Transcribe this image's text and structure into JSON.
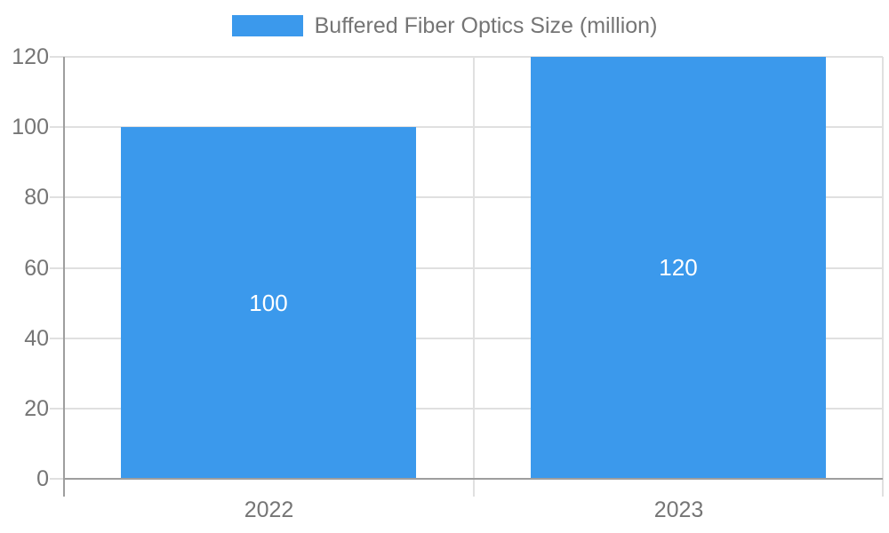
{
  "chart": {
    "colors": {
      "bar": "#3b99ec",
      "grid": "#e0e0e0",
      "axis": "#9e9e9e",
      "text": "#757575",
      "value_label": "#ffffff",
      "background": "#ffffff"
    }
  },
  "chart_data": {
    "type": "bar",
    "title": "Buffered Fiber Optics Size (million)",
    "categories": [
      "2022",
      "2023"
    ],
    "values": [
      100,
      120
    ],
    "series": [
      {
        "name": "Buffered Fiber Optics Size (million)",
        "values": [
          100,
          120
        ]
      }
    ],
    "xlabel": "",
    "ylabel": "",
    "ylim": [
      0,
      120
    ],
    "yticks": [
      0,
      20,
      40,
      60,
      80,
      100,
      120
    ],
    "grid": true,
    "legend_position": "top",
    "value_label_placement": "inside-center"
  }
}
